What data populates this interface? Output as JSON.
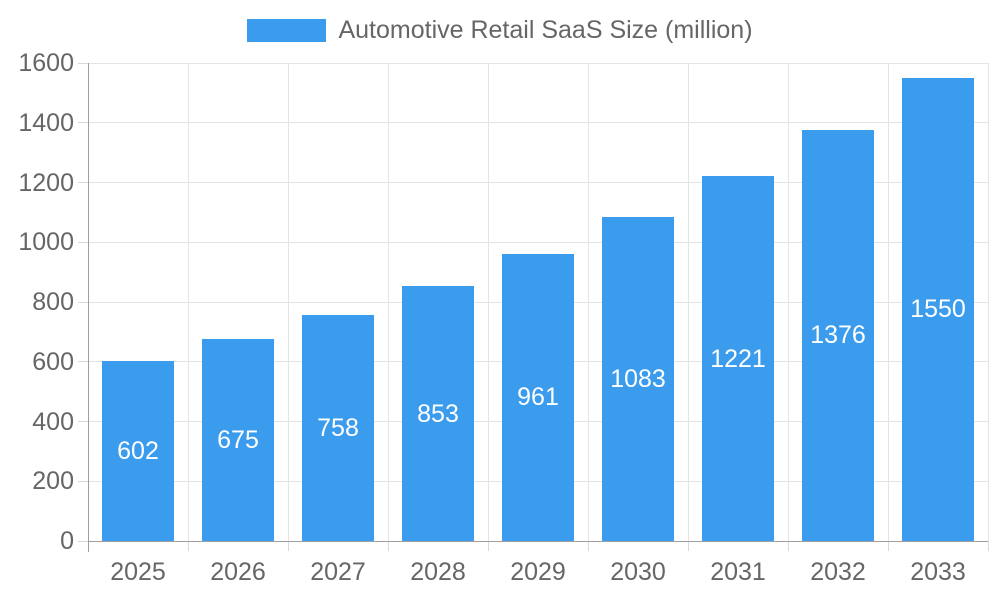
{
  "chart_data": {
    "type": "bar",
    "title": "Automotive Retail SaaS Size (million)",
    "categories": [
      "2025",
      "2026",
      "2027",
      "2028",
      "2029",
      "2030",
      "2031",
      "2032",
      "2033"
    ],
    "values": [
      602,
      675,
      758,
      853,
      961,
      1083,
      1221,
      1376,
      1550
    ],
    "xlabel": "",
    "ylabel": "",
    "ylim": [
      0,
      1600
    ],
    "ytick_step": 200,
    "ytick_labels": [
      "0",
      "200",
      "400",
      "600",
      "800",
      "1000",
      "1200",
      "1400",
      "1600"
    ],
    "grid": true,
    "legend_position": "top",
    "value_labels": "inside-center"
  },
  "legend": {
    "items": [
      {
        "label": "Automotive Retail SaaS Size (million)"
      }
    ]
  },
  "colors": {
    "bar": "#3B9CEE",
    "grid": "#E4E4E4",
    "axis": "#9E9E9E",
    "tick": "#D8D8D8",
    "text": "#666666",
    "bar_label": "#FFFFFF",
    "background": "#FFFFFF"
  }
}
